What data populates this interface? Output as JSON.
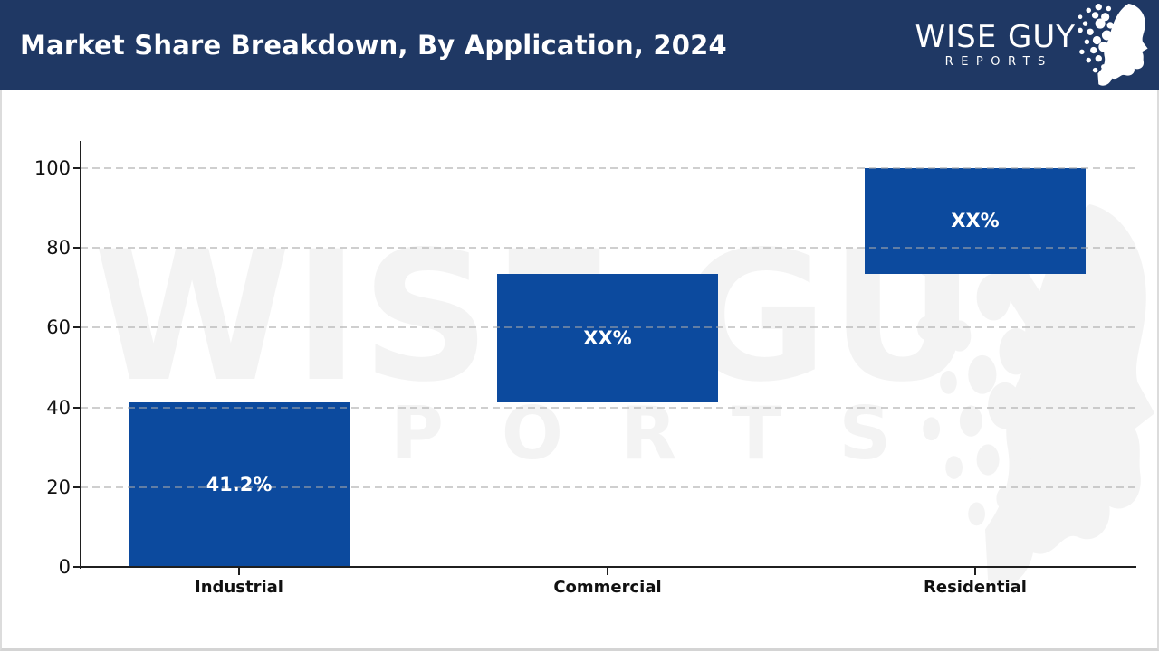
{
  "header": {
    "bg": "#1f3864",
    "title": "Market Share Breakdown, By Application, 2024",
    "logo": {
      "wordmark": "WISE GUY",
      "sub": "REPORTS"
    }
  },
  "watermark": {
    "wordmark": "WISE GUY",
    "sub": "REPORTS"
  },
  "chart_data": {
    "type": "bar",
    "subtype": "floating-waterfall-segments",
    "title": "Market Share Breakdown, By Application, 2024",
    "categories": [
      "Industrial",
      "Commercial",
      "Residential"
    ],
    "segments": [
      {
        "category": "Industrial",
        "start": 0,
        "end": 41.2,
        "label": "41.2%",
        "size_estimate": 41.2
      },
      {
        "category": "Commercial",
        "start": 41.2,
        "end": 73.5,
        "label": "XX%",
        "size_estimate": 32.3
      },
      {
        "category": "Residential",
        "start": 73.5,
        "end": 100,
        "label": "XX%",
        "size_estimate": 26.5
      }
    ],
    "xlabel": "",
    "ylabel": "",
    "ylim": [
      0,
      100
    ],
    "yticks": [
      0,
      20,
      40,
      60,
      80,
      100
    ],
    "grid": {
      "axis": "y",
      "style": "dashed",
      "on": true
    },
    "bar_color": "#0c4a9e",
    "bar_label_color": "#ffffff",
    "axis_color": "#1f1f1f",
    "tick_label_color": "#111111",
    "legend": "none"
  }
}
